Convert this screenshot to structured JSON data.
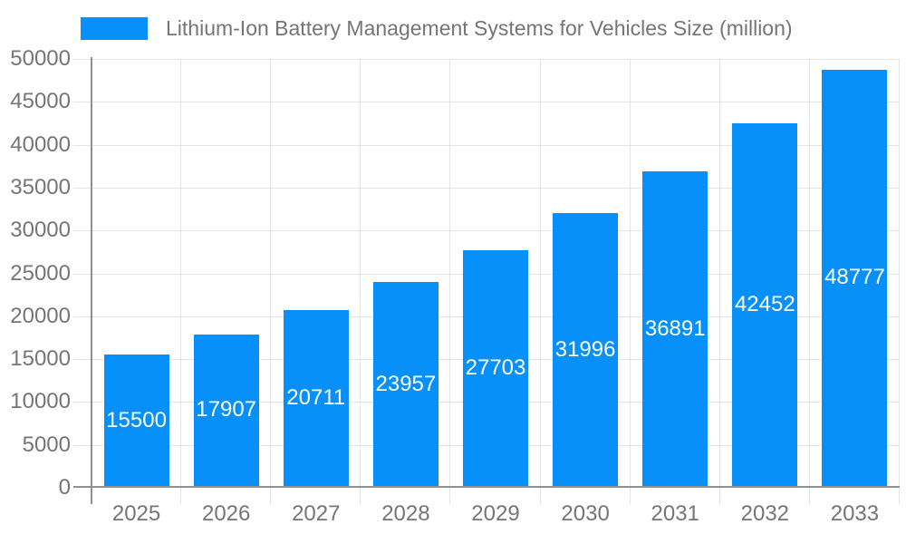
{
  "legend": {
    "label": "Lithium-Ion Battery Management Systems for Vehicles Size (million)"
  },
  "chart_data": {
    "type": "bar",
    "title": "Lithium-Ion Battery Management Systems for Vehicles Size (million)",
    "categories": [
      "2025",
      "2026",
      "2027",
      "2028",
      "2029",
      "2030",
      "2031",
      "2032",
      "2033"
    ],
    "values": [
      15500,
      17907,
      20711,
      23957,
      27703,
      31996,
      36891,
      42452,
      48777
    ],
    "yticks": [
      0,
      5000,
      10000,
      15000,
      20000,
      25000,
      30000,
      35000,
      40000,
      45000,
      50000
    ],
    "xlabel": "",
    "ylabel": "",
    "ylim": [
      0,
      50000
    ],
    "ytick_step": 5000,
    "grid": true,
    "legend_position": "top-left",
    "colors": {
      "bar": "#0790F9",
      "bar_label_text": "#ffffff",
      "axis_text": "#757575",
      "grid_line": "#e4e4e4",
      "axis_line": "#919191"
    }
  }
}
